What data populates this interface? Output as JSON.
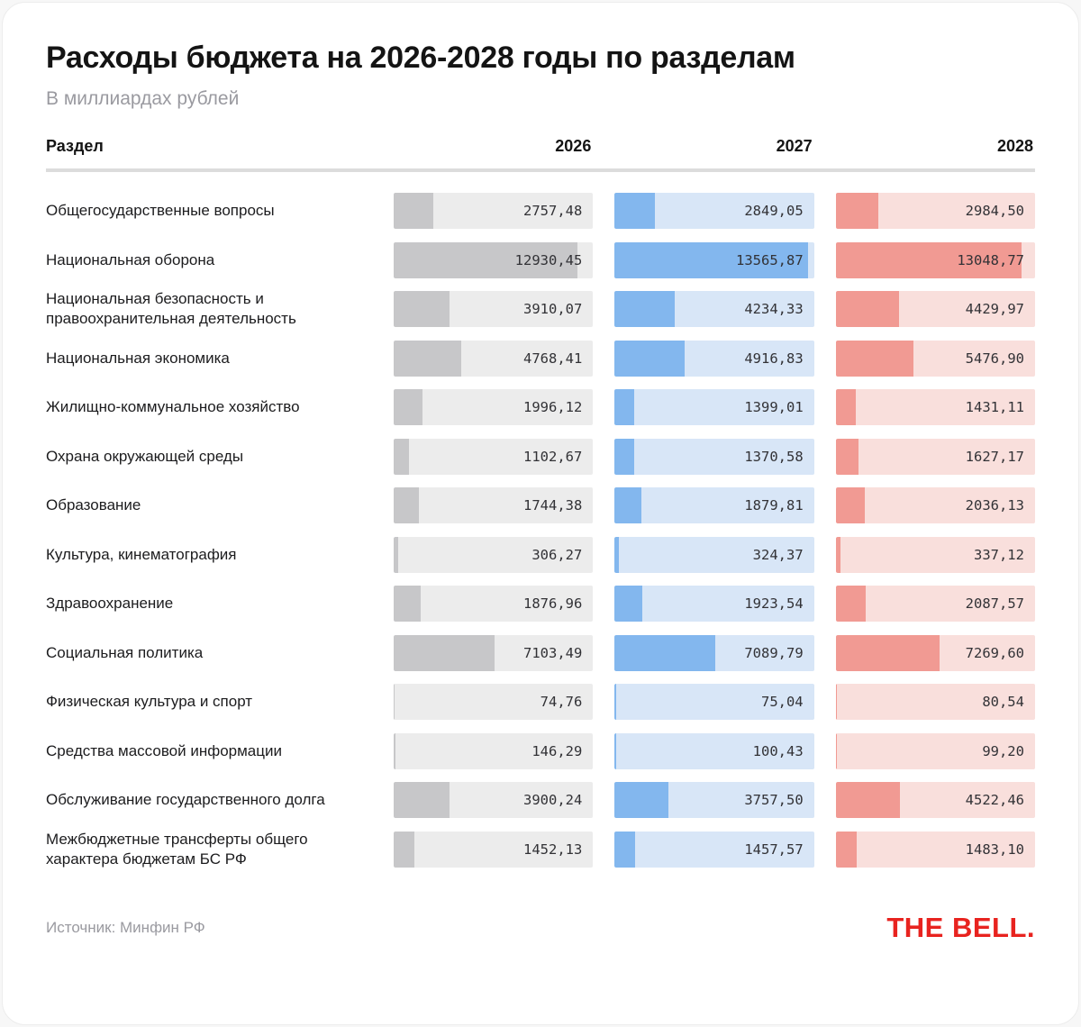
{
  "header": {
    "title": "Расходы бюджета на 2026-2028 годы по разделам",
    "subtitle": "В миллиардах рублей",
    "section_column": "Раздел"
  },
  "footer": {
    "source": "Источник: Минфин РФ",
    "logo": "THE BELL."
  },
  "colors": {
    "accent_2026_fill": "#c7c7c9",
    "accent_2026_track": "#ececec",
    "accent_2027_fill": "#83b7ee",
    "accent_2027_track": "#d8e6f7",
    "accent_2028_fill": "#f19a93",
    "accent_2028_track": "#f9dfdc",
    "logo_red": "#e8231f"
  },
  "chart_data": {
    "type": "bar",
    "title": "Расходы бюджета на 2026-2028 годы по разделам",
    "subtitle": "В миллиардах рублей",
    "unit": "млрд руб.",
    "legend_position": "column-headers",
    "scale_max": 14000,
    "categories": [
      "Общегосударственные вопросы",
      "Национальная оборона",
      "Национальная безопасность и правоохранительная деятельность",
      "Национальная экономика",
      "Жилищно-коммунальное хозяйство",
      "Охрана окружающей среды",
      "Образование",
      "Культура, кинематография",
      "Здравоохранение",
      "Социальная политика",
      "Физическая культура и спорт",
      "Средства массовой информации",
      "Обслуживание государственного долга",
      "Межбюджетные трансферты общего характера бюджетам БС РФ"
    ],
    "series": [
      {
        "name": "2026",
        "values": [
          2757.48,
          12930.45,
          3910.07,
          4768.41,
          1996.12,
          1102.67,
          1744.38,
          306.27,
          1876.96,
          7103.49,
          74.76,
          146.29,
          3900.24,
          1452.13
        ],
        "displays": [
          "2757,48",
          "12930,45",
          "3910,07",
          "4768,41",
          "1996,12",
          "1102,67",
          "1744,38",
          "306,27",
          "1876,96",
          "7103,49",
          "74,76",
          "146,29",
          "3900,24",
          "1452,13"
        ]
      },
      {
        "name": "2027",
        "values": [
          2849.05,
          13565.87,
          4234.33,
          4916.83,
          1399.01,
          1370.58,
          1879.81,
          324.37,
          1923.54,
          7089.79,
          75.04,
          100.43,
          3757.5,
          1457.57
        ],
        "displays": [
          "2849,05",
          "13565,87",
          "4234,33",
          "4916,83",
          "1399,01",
          "1370,58",
          "1879,81",
          "324,37",
          "1923,54",
          "7089,79",
          "75,04",
          "100,43",
          "3757,50",
          "1457,57"
        ]
      },
      {
        "name": "2028",
        "values": [
          2984.5,
          13048.77,
          4429.97,
          5476.9,
          1431.11,
          1627.17,
          2036.13,
          337.12,
          2087.57,
          7269.6,
          80.54,
          99.2,
          4522.46,
          1483.1
        ],
        "displays": [
          "2984,50",
          "13048,77",
          "4429,97",
          "5476,90",
          "1431,11",
          "1627,17",
          "2036,13",
          "337,12",
          "2087,57",
          "7269,60",
          "80,54",
          "99,20",
          "4522,46",
          "1483,10"
        ]
      }
    ]
  }
}
